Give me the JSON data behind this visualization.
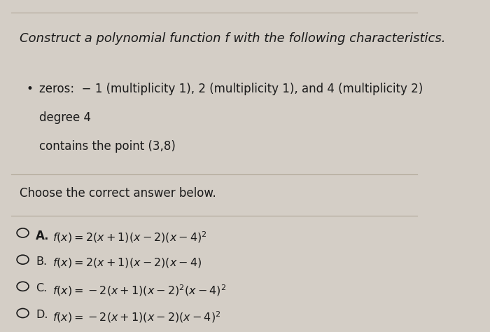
{
  "background_color": "#d4cec6",
  "title_text": "Construct a polynomial function f with the following characteristics.",
  "bullet_lines": [
    "zeros:  − 1 (multiplicity 1), 2 (multiplicity 1), and 4 (multiplicity 2)",
    "degree 4",
    "contains the point (3,8)"
  ],
  "choose_text": "Choose the correct answer below.",
  "title_fontsize": 13,
  "body_fontsize": 12,
  "option_fontsize": 11.5,
  "text_color": "#1a1a1a",
  "line_color": "#b0a898"
}
